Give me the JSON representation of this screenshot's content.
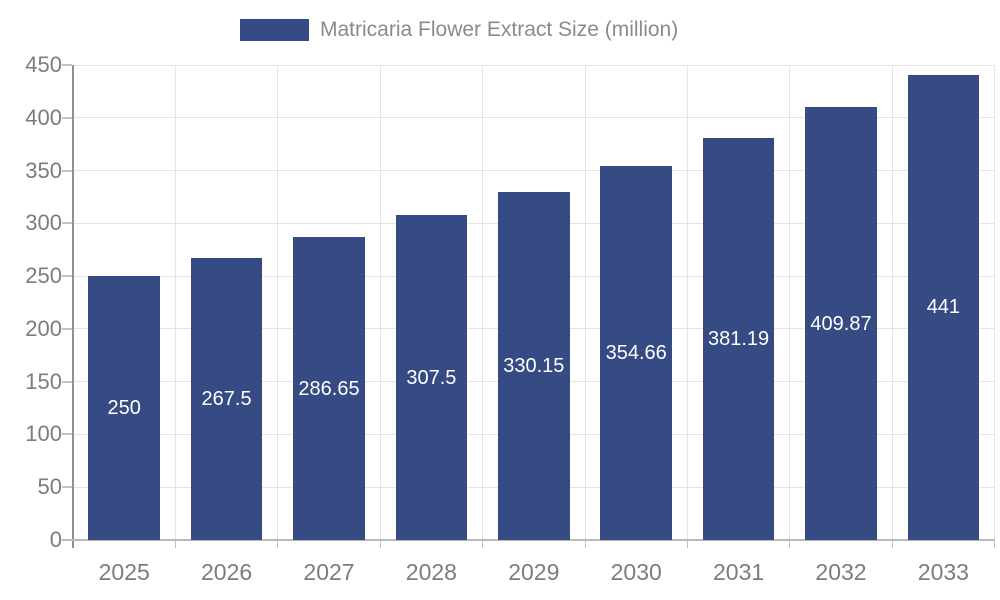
{
  "legend": {
    "label": "Matricaria Flower Extract Size (million)"
  },
  "chart_data": {
    "type": "bar",
    "title": "Matricaria Flower Extract Size (million)",
    "categories": [
      "2025",
      "2026",
      "2027",
      "2028",
      "2029",
      "2030",
      "2031",
      "2032",
      "2033"
    ],
    "values": [
      250,
      267.5,
      286.65,
      307.5,
      330.15,
      354.66,
      381.19,
      409.87,
      441
    ],
    "series_name": "Matricaria Flower Extract Size (million)",
    "xlabel": "",
    "ylabel": "",
    "ylim": [
      0,
      450
    ],
    "ytick_step": 50,
    "yticks": [
      0,
      50,
      100,
      150,
      200,
      250,
      300,
      350,
      400,
      450
    ],
    "grid": true,
    "legend_position": "top-center",
    "value_labels_inside": true,
    "colors": {
      "bar": "#364a84",
      "value_label": "#ffffff",
      "axis_text": "#7c7c7c",
      "legend_text": "#8a8a8a",
      "grid_line": "#e4e4e4",
      "y_axis_line": "#909090",
      "x_axis_line": "#b9b9b9",
      "tick": "#c2c2c2",
      "background": "#ffffff"
    }
  }
}
